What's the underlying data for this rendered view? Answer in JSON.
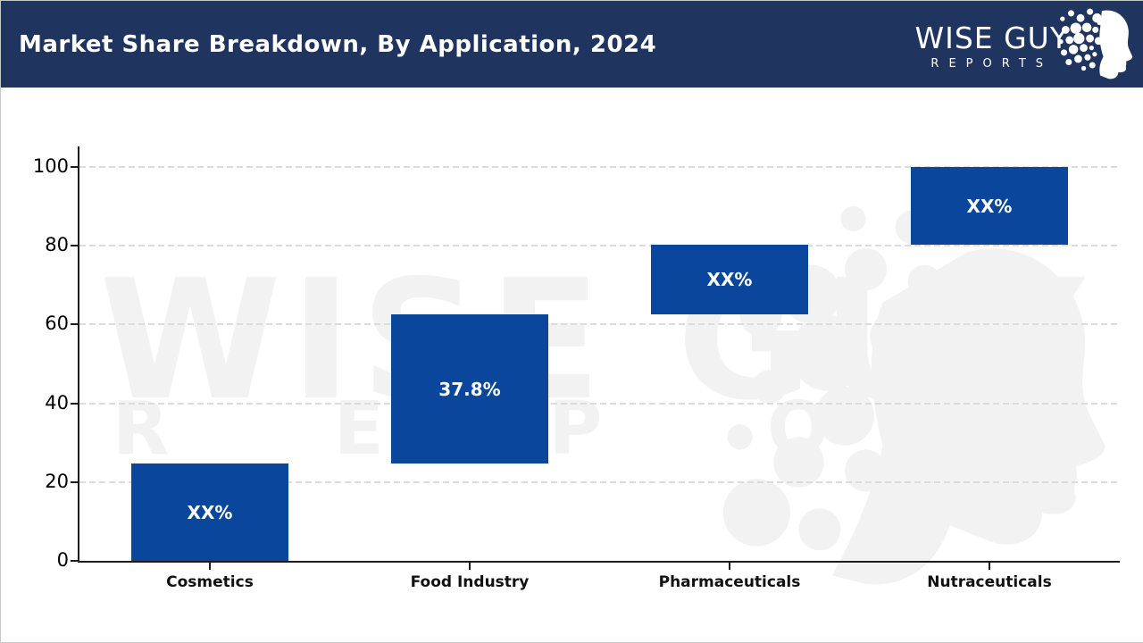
{
  "header": {
    "title": "Market Share Breakdown, By Application, 2024",
    "background_color": "#1f345e",
    "logo": {
      "line1": "WISE GUY",
      "line2": "REPORTS"
    }
  },
  "watermark": {
    "line1": "WISE GUY",
    "line2": "R E P O R T S"
  },
  "chart_data": {
    "type": "bar",
    "subtype": "floating-segment-waterfall",
    "title": "Market Share Breakdown, By Application, 2024",
    "categories": [
      "Cosmetics",
      "Food Industry",
      "Pharmaceuticals",
      "Nutraceuticals"
    ],
    "segments": [
      {
        "category": "Cosmetics",
        "start": 0,
        "end": 24.8,
        "label": "XX%"
      },
      {
        "category": "Food Industry",
        "start": 24.8,
        "end": 62.6,
        "label": "37.8%"
      },
      {
        "category": "Pharmaceuticals",
        "start": 62.6,
        "end": 80.2,
        "label": "XX%"
      },
      {
        "category": "Nutraceuticals",
        "start": 80.2,
        "end": 100,
        "label": "XX%"
      }
    ],
    "xlabel": "",
    "ylabel": "",
    "yticks": [
      0,
      20,
      40,
      60,
      80,
      100
    ],
    "ytick_labels": [
      "0",
      "20",
      "40",
      "60",
      "80",
      "100"
    ],
    "ylim": [
      0,
      105
    ],
    "grid": "horizontal-dashed",
    "legend": "none",
    "bar_color": "#0a479c",
    "bar_label_color": "#ffffff",
    "axis_color": "#1c1c1c",
    "gridline_color": "#dcdcdc"
  }
}
